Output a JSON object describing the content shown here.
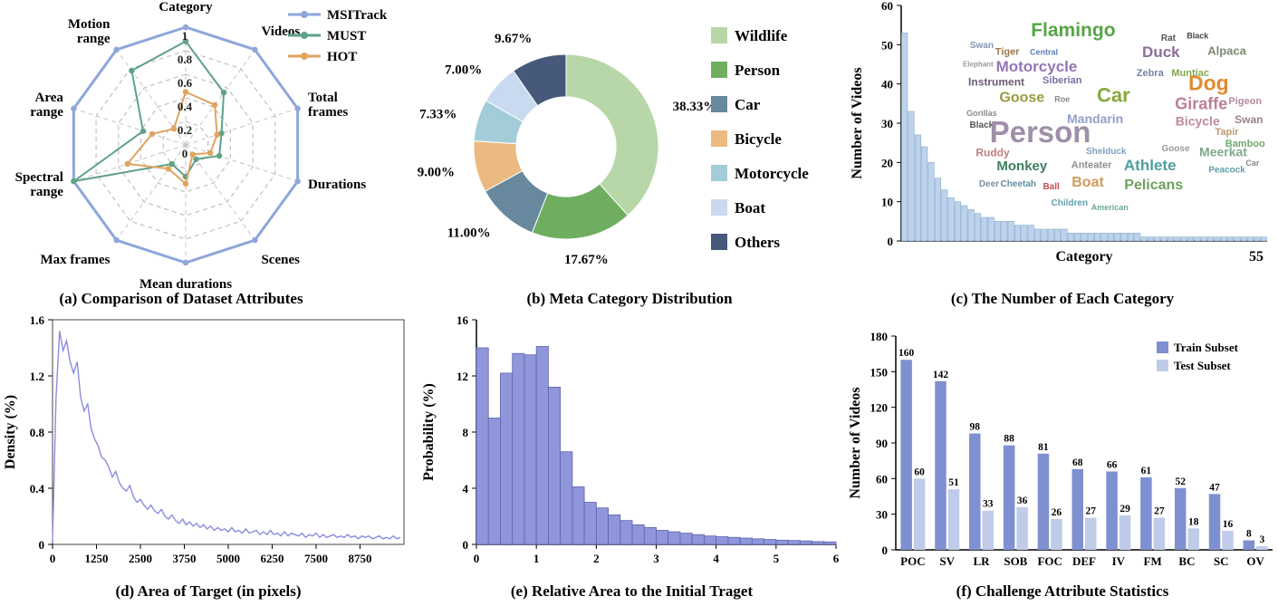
{
  "chart_data": [
    {
      "type": "radar",
      "title": "(a) Comparison of Dataset Attributes",
      "axes": [
        "Category",
        "Videos",
        "Total\nframes",
        "Durations",
        "Scenes",
        "Mean durations",
        "Max frames",
        "Spectral\nrange",
        "Area\nrange",
        "Motion\nrange"
      ],
      "tick_labels": [
        "0",
        "0.2",
        "0.4",
        "0.6",
        "0.8",
        "1"
      ],
      "series": [
        {
          "name": "MSITrack",
          "color": "#8ea6d9",
          "values": [
            1,
            1,
            1,
            1,
            1,
            1,
            1,
            1,
            1,
            1
          ]
        },
        {
          "name": "MUST",
          "color": "#5fa287",
          "values": [
            0.88,
            0.55,
            0.32,
            0.3,
            0.15,
            0.27,
            0.2,
            1.0,
            0.38,
            0.78
          ]
        },
        {
          "name": "HOT",
          "color": "#e0a45f",
          "values": [
            0.45,
            0.42,
            0.28,
            0.22,
            0.1,
            0.33,
            0.25,
            0.52,
            0.3,
            0.17
          ]
        }
      ]
    },
    {
      "type": "pie",
      "title": "(b) Meta Category Distribution",
      "labels": [
        "Wildlife",
        "Person",
        "Car",
        "Bicycle",
        "Motorcycle",
        "Boat",
        "Others"
      ],
      "values": [
        38.33,
        17.67,
        11.0,
        9.0,
        7.33,
        7.0,
        9.67
      ],
      "pct_labels": [
        "38.33%",
        "17.67%",
        "11.00%",
        "9.00%",
        "7.33%",
        "7.00%",
        "9.67%"
      ],
      "colors": [
        "#b7d7a8",
        "#6fae61",
        "#68889d",
        "#eaba80",
        "#a3ccd9",
        "#c9d9f0",
        "#47597a"
      ],
      "inner_ratio": 0.54
    },
    {
      "type": "bar",
      "title": "(c) The Number of Each Category",
      "ylabel": "Number of Videos",
      "xlabel": "Category",
      "x_end_label": "55",
      "ylim": [
        0,
        60
      ],
      "yticks": [
        0,
        10,
        20,
        30,
        40,
        50,
        60
      ],
      "bar_color": "#bdd3ed",
      "bar_edge": "#8aa7c9",
      "values": [
        53,
        33,
        27,
        24,
        20,
        16,
        13,
        11,
        10,
        9,
        8,
        7,
        6,
        6,
        5,
        5,
        5,
        4,
        4,
        4,
        3,
        3,
        3,
        3,
        3,
        2,
        2,
        2,
        2,
        2,
        2,
        2,
        2,
        2,
        2,
        2,
        1,
        1,
        1,
        1,
        1,
        1,
        1,
        1,
        1,
        1,
        1,
        1,
        1,
        1,
        1,
        1,
        1,
        1,
        1
      ],
      "words": [
        {
          "t": "Flamingo",
          "s": 21,
          "c": "#55a545",
          "x": 47,
          "y": 13
        },
        {
          "t": "Central",
          "s": 9,
          "c": "#5b7fb5",
          "x": 39,
          "y": 21
        },
        {
          "t": "Tiger",
          "s": 11,
          "c": "#a0764f",
          "x": 29,
          "y": 21
        },
        {
          "t": "Swan",
          "s": 10,
          "c": "#7f98b0",
          "x": 22,
          "y": 18
        },
        {
          "t": "Rat",
          "s": 10,
          "c": "#555555",
          "x": 73,
          "y": 15
        },
        {
          "t": "Black",
          "s": 9,
          "c": "#444444",
          "x": 81,
          "y": 14
        },
        {
          "t": "Alpaca",
          "s": 13,
          "c": "#7d8a6f",
          "x": 89,
          "y": 21
        },
        {
          "t": "Duck",
          "s": 17,
          "c": "#8d6e99",
          "x": 71,
          "y": 22
        },
        {
          "t": "Motorcycle",
          "s": 17,
          "c": "#9575b5",
          "x": 37,
          "y": 28
        },
        {
          "t": "Elephant",
          "s": 8,
          "c": "#999999",
          "x": 21,
          "y": 26
        },
        {
          "t": "Instrument",
          "s": 12,
          "c": "#6b5b73",
          "x": 26,
          "y": 34
        },
        {
          "t": "Siberian",
          "s": 11,
          "c": "#7a6f9f",
          "x": 44,
          "y": 33
        },
        {
          "t": "Zebra",
          "s": 11,
          "c": "#6f86a8",
          "x": 68,
          "y": 30
        },
        {
          "t": "Muntjac",
          "s": 11,
          "c": "#7fa84f",
          "x": 79,
          "y": 30
        },
        {
          "t": "Dog",
          "s": 23,
          "c": "#e08a30",
          "x": 84,
          "y": 36
        },
        {
          "t": "Goose",
          "s": 16,
          "c": "#9a9a3f",
          "x": 33,
          "y": 41
        },
        {
          "t": "Roe",
          "s": 9,
          "c": "#888888",
          "x": 44,
          "y": 41
        },
        {
          "t": "Car",
          "s": 22,
          "c": "#88a83c",
          "x": 58,
          "y": 41
        },
        {
          "t": "Giraffe",
          "s": 18,
          "c": "#c07d96",
          "x": 82,
          "y": 44
        },
        {
          "t": "Pigeon",
          "s": 11,
          "c": "#b58a9f",
          "x": 94,
          "y": 42
        },
        {
          "t": "Gorillas",
          "s": 9,
          "c": "#8a8a8a",
          "x": 22,
          "y": 47
        },
        {
          "t": "Black",
          "s": 10,
          "c": "#555555",
          "x": 22,
          "y": 52
        },
        {
          "t": "Mandarin",
          "s": 14,
          "c": "#8f9fc8",
          "x": 53,
          "y": 50
        },
        {
          "t": "Bicycle",
          "s": 14,
          "c": "#c08a9a",
          "x": 81,
          "y": 51
        },
        {
          "t": "Swan",
          "s": 12,
          "c": "#9f7f8f",
          "x": 95,
          "y": 50
        },
        {
          "t": "Person",
          "s": 33,
          "c": "#9f8fa8",
          "x": 38,
          "y": 58
        },
        {
          "t": "Tapir",
          "s": 11,
          "c": "#c09a6f",
          "x": 89,
          "y": 55
        },
        {
          "t": "Bamboo",
          "s": 11,
          "c": "#6fa86f",
          "x": 94,
          "y": 60
        },
        {
          "t": "Ruddy",
          "s": 12,
          "c": "#c08080",
          "x": 25,
          "y": 64
        },
        {
          "t": "Shelduck",
          "s": 10,
          "c": "#7f9fc0",
          "x": 56,
          "y": 63
        },
        {
          "t": "Goose",
          "s": 10,
          "c": "#999999",
          "x": 75,
          "y": 62
        },
        {
          "t": "Meerkat",
          "s": 14,
          "c": "#7fa88f",
          "x": 88,
          "y": 64
        },
        {
          "t": "Monkey",
          "s": 15,
          "c": "#3f7f5f",
          "x": 33,
          "y": 70
        },
        {
          "t": "Anteater",
          "s": 11,
          "c": "#8f8f8f",
          "x": 52,
          "y": 69
        },
        {
          "t": "Athlete",
          "s": 17,
          "c": "#4f9f9f",
          "x": 68,
          "y": 70
        },
        {
          "t": "Peacock",
          "s": 10,
          "c": "#5f9fa8",
          "x": 89,
          "y": 71
        },
        {
          "t": "Car",
          "s": 9,
          "c": "#888888",
          "x": 96,
          "y": 68
        },
        {
          "t": "Deer",
          "s": 10,
          "c": "#7f8f9f",
          "x": 24,
          "y": 77
        },
        {
          "t": "Cheetah",
          "s": 10,
          "c": "#5f8fa0",
          "x": 32,
          "y": 77
        },
        {
          "t": "Ball",
          "s": 10,
          "c": "#c05050",
          "x": 41,
          "y": 78
        },
        {
          "t": "Boat",
          "s": 16,
          "c": "#d09a5f",
          "x": 51,
          "y": 77
        },
        {
          "t": "Pelicans",
          "s": 16,
          "c": "#6fa05f",
          "x": 69,
          "y": 78
        },
        {
          "t": "Children",
          "s": 10,
          "c": "#5f9fb0",
          "x": 46,
          "y": 85
        },
        {
          "t": "American",
          "s": 9,
          "c": "#6fa8a0",
          "x": 57,
          "y": 87
        }
      ]
    },
    {
      "type": "line",
      "title": "(d) Area of Target (in pixels)",
      "ylabel": "Density (%)",
      "xlim": [
        0,
        10000
      ],
      "ylim": [
        0,
        1.6
      ],
      "xticks": [
        0,
        1250,
        2500,
        3750,
        5000,
        6250,
        7500,
        8750
      ],
      "yticks": [
        0,
        0.4,
        0.8,
        1.2,
        1.6
      ],
      "color": "#8c8ce0",
      "x_step": 100,
      "y_values": [
        0.02,
        1.05,
        1.52,
        1.38,
        1.45,
        1.3,
        1.22,
        1.3,
        1.05,
        0.95,
        1.0,
        0.82,
        0.75,
        0.7,
        0.62,
        0.6,
        0.55,
        0.48,
        0.52,
        0.44,
        0.4,
        0.38,
        0.42,
        0.34,
        0.3,
        0.32,
        0.28,
        0.25,
        0.28,
        0.24,
        0.22,
        0.25,
        0.2,
        0.18,
        0.21,
        0.17,
        0.15,
        0.18,
        0.14,
        0.16,
        0.13,
        0.15,
        0.12,
        0.14,
        0.11,
        0.13,
        0.1,
        0.12,
        0.1,
        0.11,
        0.09,
        0.12,
        0.09,
        0.1,
        0.08,
        0.11,
        0.08,
        0.09,
        0.1,
        0.07,
        0.09,
        0.07,
        0.1,
        0.07,
        0.08,
        0.06,
        0.09,
        0.06,
        0.08,
        0.07,
        0.06,
        0.08,
        0.05,
        0.07,
        0.06,
        0.08,
        0.05,
        0.07,
        0.05,
        0.06,
        0.07,
        0.05,
        0.06,
        0.05,
        0.07,
        0.05,
        0.06,
        0.04,
        0.06,
        0.05,
        0.06,
        0.04,
        0.05,
        0.06,
        0.04,
        0.05,
        0.04,
        0.06,
        0.04,
        0.05
      ]
    },
    {
      "type": "bar",
      "title": "(e) Relative Area to the Initial Traget",
      "ylabel": "Probability (%)",
      "xlim": [
        0,
        6
      ],
      "ylim": [
        0,
        16
      ],
      "xticks": [
        0,
        1,
        2,
        3,
        4,
        5,
        6
      ],
      "yticks": [
        0,
        4,
        8,
        12,
        16
      ],
      "bin_width": 0.2,
      "bar_color": "#8f96d9",
      "bar_edge": "#5d64b0",
      "values": [
        14.0,
        9.0,
        12.2,
        13.6,
        13.5,
        14.1,
        11.2,
        6.6,
        4.1,
        3.0,
        2.6,
        2.1,
        1.7,
        1.4,
        1.2,
        1.0,
        0.9,
        0.8,
        0.7,
        0.6,
        0.55,
        0.5,
        0.45,
        0.4,
        0.35,
        0.3,
        0.28,
        0.25,
        0.2,
        0.18
      ]
    },
    {
      "type": "bar",
      "title": "(f) Challenge Attribute Statistics",
      "ylabel": "Number of Videos",
      "categories": [
        "POC",
        "SV",
        "LR",
        "SOB",
        "FOC",
        "DEF",
        "IV",
        "FM",
        "BC",
        "SC",
        "OV"
      ],
      "ylim": [
        0,
        180
      ],
      "yticks": [
        0,
        30,
        60,
        90,
        120,
        150,
        180
      ],
      "series": [
        {
          "name": "Train Subset",
          "color": "#7e90d0",
          "values": [
            160,
            142,
            98,
            88,
            81,
            68,
            66,
            61,
            52,
            47,
            8
          ]
        },
        {
          "name": "Test Subset",
          "color": "#bfcbe9",
          "values": [
            60,
            51,
            33,
            36,
            26,
            27,
            29,
            27,
            18,
            16,
            3
          ]
        }
      ]
    }
  ]
}
